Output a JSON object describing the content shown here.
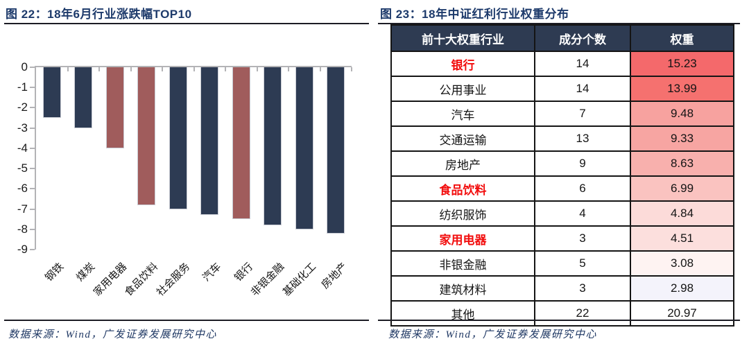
{
  "colors": {
    "navy_bar": "#2d3b53",
    "red_bar": "#a05c5c",
    "table_header_bg": "#2e3b52",
    "title_text": "#1d3a6b",
    "source_text": "#1f3864",
    "highlight_red_text": "#f20d0d",
    "axis_gray": "#b3b3b6",
    "rule_dark": "#1c1c24"
  },
  "fig22": {
    "title": "图 22：18年6月行业涨跌幅TOP10",
    "source": "数据来源：Wind，广发证券发展研究中心"
  },
  "fig23": {
    "title": "图 23：18年中证红利行业权重分布",
    "source": "数据来源：Wind，广发证券发展研究中心",
    "table": {
      "headers": [
        "前十大权重行业",
        "成分个数",
        "权重"
      ],
      "rows": [
        {
          "industry": "银行",
          "count": "14",
          "weight": "15.23",
          "red_text": true,
          "weight_bg": "#f4696b"
        },
        {
          "industry": "公用事业",
          "count": "14",
          "weight": "13.99",
          "red_text": false,
          "weight_bg": "#f5716f"
        },
        {
          "industry": "汽车",
          "count": "7",
          "weight": "9.48",
          "red_text": false,
          "weight_bg": "#f7a29f"
        },
        {
          "industry": "交通运输",
          "count": "13",
          "weight": "9.33",
          "red_text": false,
          "weight_bg": "#f7a5a2"
        },
        {
          "industry": "房地产",
          "count": "9",
          "weight": "8.63",
          "red_text": false,
          "weight_bg": "#f8b0ad"
        },
        {
          "industry": "食品饮料",
          "count": "6",
          "weight": "6.99",
          "red_text": true,
          "weight_bg": "#fac3c0"
        },
        {
          "industry": "纺织服饰",
          "count": "4",
          "weight": "4.84",
          "red_text": false,
          "weight_bg": "#fcdbd9"
        },
        {
          "industry": "家用电器",
          "count": "3",
          "weight": "4.51",
          "red_text": true,
          "weight_bg": "#fcdfdd"
        },
        {
          "industry": "非银金融",
          "count": "5",
          "weight": "3.08",
          "red_text": false,
          "weight_bg": "#fef3f2"
        },
        {
          "industry": "建筑材料",
          "count": "3",
          "weight": "2.98",
          "red_text": false,
          "weight_bg": "#f4f3fb"
        },
        {
          "industry": "其他",
          "count": "22",
          "weight": "20.97",
          "red_text": false,
          "weight_bg": "#ffffff"
        }
      ]
    }
  },
  "chart_data": [
    {
      "type": "bar",
      "title": "18年6月行业涨跌幅TOP10",
      "categories": [
        "钢铁",
        "煤炭",
        "家用电器",
        "食品饮料",
        "社会服务",
        "汽车",
        "银行",
        "非银金融",
        "基础化工",
        "房地产"
      ],
      "values": [
        -2.5,
        -3.0,
        -4.0,
        -6.8,
        -7.0,
        -7.3,
        -7.5,
        -7.8,
        -8.0,
        -8.2
      ],
      "bar_colors": [
        "#2d3b53",
        "#2d3b53",
        "#a05c5c",
        "#a05c5c",
        "#2d3b53",
        "#2d3b53",
        "#a05c5c",
        "#2d3b53",
        "#2d3b53",
        "#2d3b53"
      ],
      "xlabel": "",
      "ylabel": "",
      "ylim": [
        -9,
        0
      ],
      "yticks": [
        0,
        -1,
        -2,
        -3,
        -4,
        -5,
        -6,
        -7,
        -8,
        -9
      ],
      "grid": false,
      "legend": false,
      "xlabel_rotation": -45
    },
    {
      "type": "table",
      "title": "18年中证红利行业权重分布",
      "columns": [
        "前十大权重行业",
        "成分个数",
        "权重"
      ],
      "rows": [
        [
          "银行",
          14,
          15.23
        ],
        [
          "公用事业",
          14,
          13.99
        ],
        [
          "汽车",
          7,
          9.48
        ],
        [
          "交通运输",
          13,
          9.33
        ],
        [
          "房地产",
          9,
          8.63
        ],
        [
          "食品饮料",
          6,
          6.99
        ],
        [
          "纺织服饰",
          4,
          4.84
        ],
        [
          "家用电器",
          3,
          4.51
        ],
        [
          "非银金融",
          5,
          3.08
        ],
        [
          "建筑材料",
          3,
          2.98
        ],
        [
          "其他",
          22,
          20.97
        ]
      ]
    }
  ]
}
